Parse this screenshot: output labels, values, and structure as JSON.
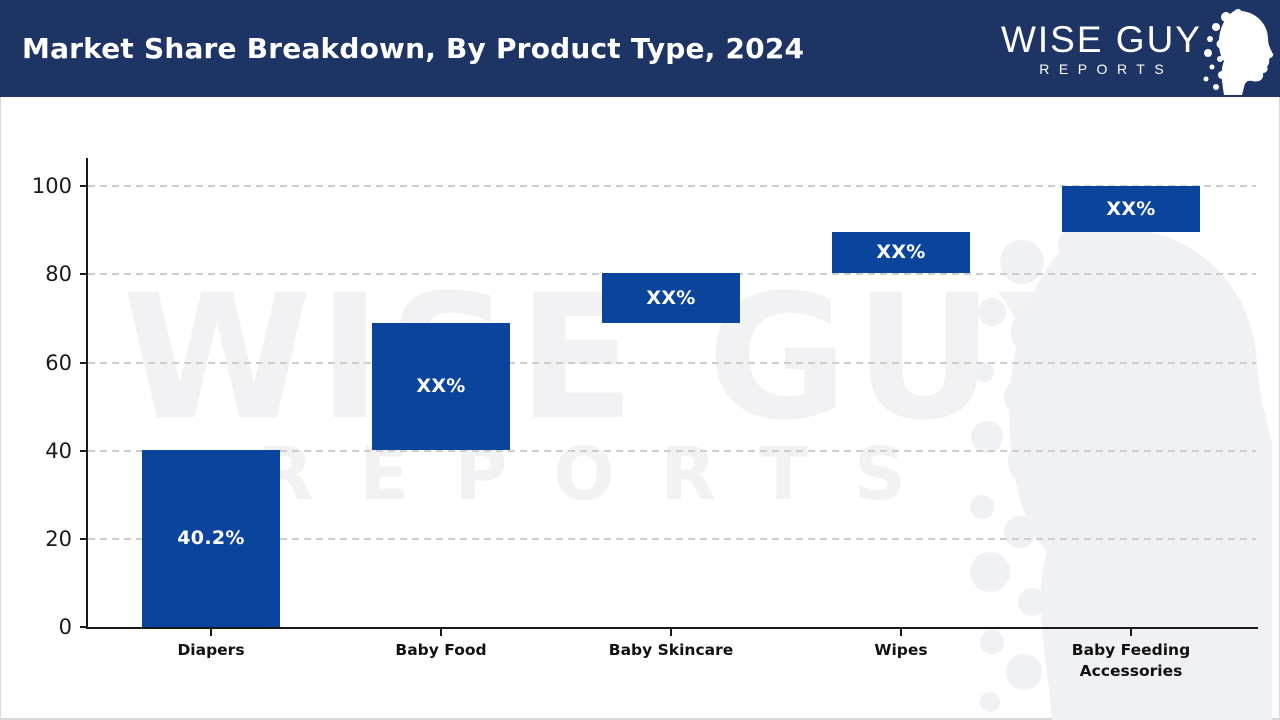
{
  "header": {
    "title": "Market Share Breakdown, By Product Type, 2024",
    "logo": {
      "line1": "WISE GUY",
      "line2": "REPORTS"
    }
  },
  "watermark": {
    "line1": "WISE GUY",
    "line2": "REPORTS"
  },
  "colors": {
    "header_bg": "#1e3464",
    "bar": "#0a449c",
    "bar_label_text": "#ffffff",
    "grid": "#cdcdcd",
    "axis": "#1a1a1a",
    "watermark": "#f2f2f5"
  },
  "chart_data": {
    "type": "bar",
    "subtype": "waterfall",
    "title": "Market Share Breakdown, By Product Type, 2024",
    "categories": [
      "Diapers",
      "Baby Food",
      "Baby Skincare",
      "Wipes",
      "Baby Feeding Accessories"
    ],
    "segments": [
      {
        "category": "Diapers",
        "start": 0,
        "end": 40.2,
        "label": "40.2%"
      },
      {
        "category": "Baby Food",
        "start": 40.2,
        "end": 69.0,
        "label": "XX%"
      },
      {
        "category": "Baby Skincare",
        "start": 69.0,
        "end": 80.3,
        "label": "XX%"
      },
      {
        "category": "Wipes",
        "start": 80.3,
        "end": 89.7,
        "label": "XX%"
      },
      {
        "category": "Baby Feeding Accessories",
        "start": 89.7,
        "end": 100,
        "label": "XX%"
      }
    ],
    "ylim": [
      0,
      100
    ],
    "yticks": [
      0,
      20,
      40,
      60,
      80,
      100
    ],
    "ytick_labels": [
      "0",
      "20",
      "40",
      "60",
      "80",
      "100"
    ],
    "xlabel": "",
    "ylabel": "",
    "grid": "horizontal-dashed",
    "legend": "none"
  }
}
